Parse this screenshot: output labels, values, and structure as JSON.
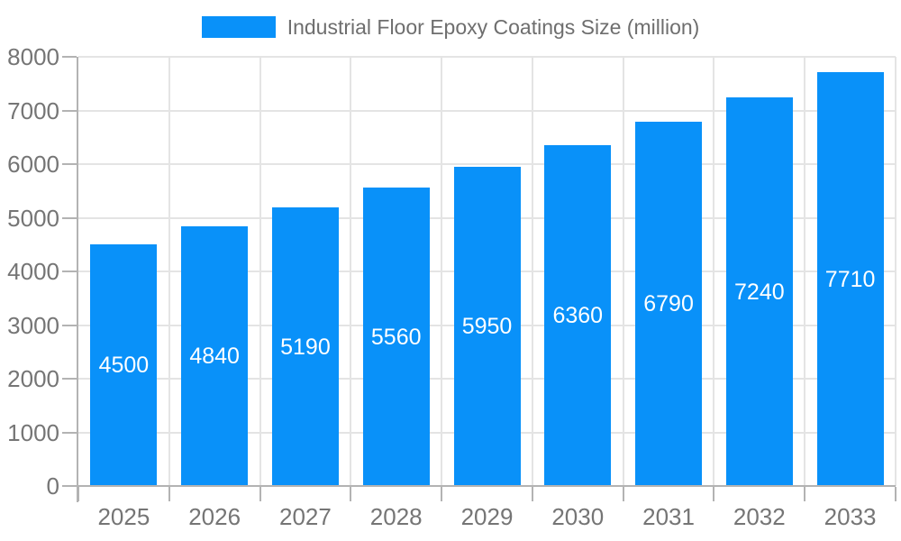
{
  "legend": {
    "label": "Industrial Floor Epoxy Coatings Size (million)"
  },
  "chart_data": {
    "type": "bar",
    "title": "Industrial Floor Epoxy Coatings Size (million)",
    "series_name": "Industrial Floor Epoxy Coatings Size (million)",
    "categories": [
      "2025",
      "2026",
      "2027",
      "2028",
      "2029",
      "2030",
      "2031",
      "2032",
      "2033"
    ],
    "values": [
      4500,
      4840,
      5190,
      5560,
      5950,
      6360,
      6790,
      7240,
      7710
    ],
    "xlabel": "",
    "ylabel": "",
    "ylim": [
      0,
      8000
    ],
    "ytick_step": 1000,
    "yticks": [
      0,
      1000,
      2000,
      3000,
      4000,
      5000,
      6000,
      7000,
      8000
    ],
    "bar_value_labels_visible": true,
    "legend_position": "top-center",
    "grid": true,
    "colors": {
      "bar": "#0991f9",
      "bar_value_label": "#ffffff",
      "axis_text": "#757575",
      "title_text": "#6e6e6e",
      "grid_line": "#e4e4e4",
      "axis_line": "#b3b3b3",
      "background": "#ffffff"
    }
  }
}
